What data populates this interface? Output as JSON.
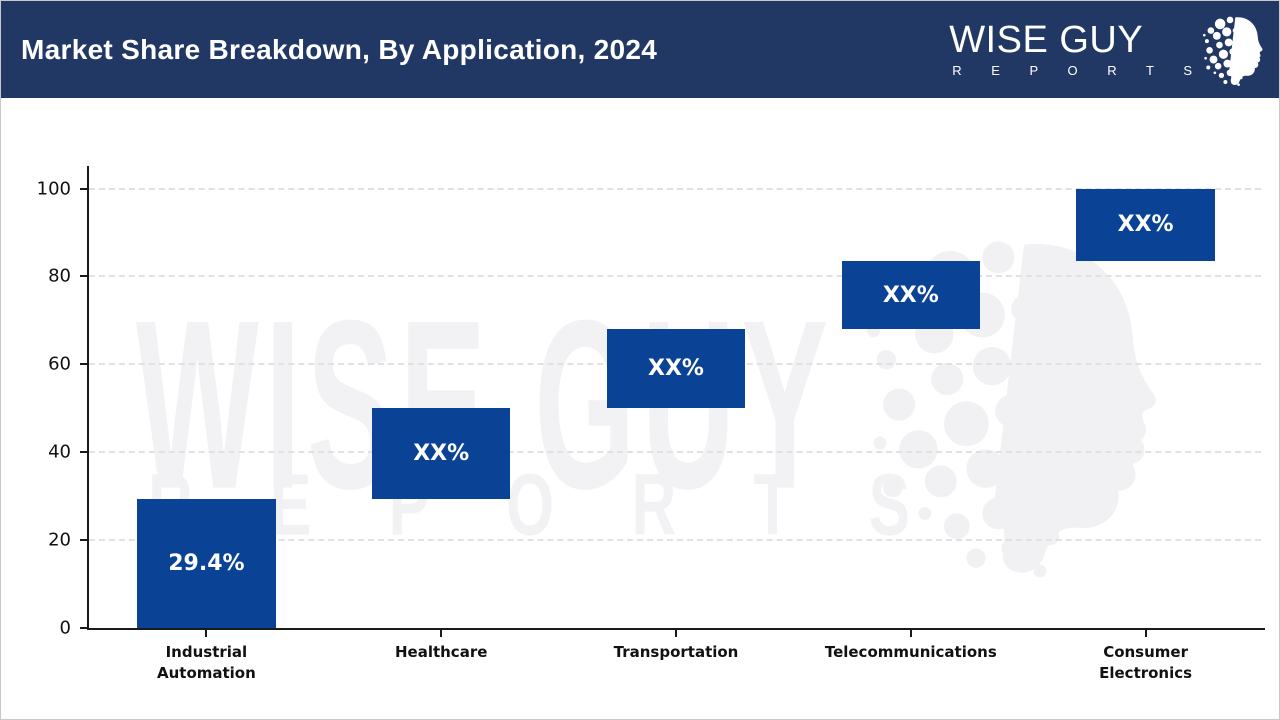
{
  "header": {
    "title": "Market Share Breakdown, By Application, 2024",
    "logo": {
      "name": "WISE GUY",
      "tagline": "R E P O R T S"
    }
  },
  "watermark": {
    "name": "WISE GUY",
    "tagline": "R E P O R T S"
  },
  "chart_data": {
    "type": "bar",
    "subtype": "waterfall",
    "title": "Market Share Breakdown, By Application, 2024",
    "categories": [
      "Industrial Automation",
      "Healthcare",
      "Transportation",
      "Telecommunications",
      "Consumer Electronics"
    ],
    "bars": [
      {
        "category": "Industrial Automation",
        "tick_lines": [
          "Industrial",
          "Automation"
        ],
        "start": 0,
        "end": 29.4,
        "label": "29.4%"
      },
      {
        "category": "Healthcare",
        "tick_lines": [
          "Healthcare"
        ],
        "start": 29.4,
        "end": 50,
        "label": "XX%"
      },
      {
        "category": "Transportation",
        "tick_lines": [
          "Transportation"
        ],
        "start": 50,
        "end": 68,
        "label": "XX%"
      },
      {
        "category": "Telecommunications",
        "tick_lines": [
          "Telecommunications"
        ],
        "start": 68,
        "end": 83.5,
        "label": "XX%"
      },
      {
        "category": "Consumer Electronics",
        "tick_lines": [
          "Consumer",
          "Electronics"
        ],
        "start": 83.5,
        "end": 100,
        "label": "XX%"
      }
    ],
    "yticks": [
      0,
      20,
      40,
      60,
      80,
      100
    ],
    "ylim": [
      0,
      104
    ],
    "xlabel": "",
    "ylabel": "",
    "grid": "horizontal-dashed",
    "legend": "none",
    "bar_color": "#0a4296",
    "bar_label_color": "#ffffff"
  },
  "colors": {
    "header_bg": "#223864",
    "bar": "#0a4296",
    "grid": "#e1e1e1",
    "axis": "#1a1a1a",
    "watermark": "#f2f2f5",
    "border": "#c9c9c9"
  }
}
